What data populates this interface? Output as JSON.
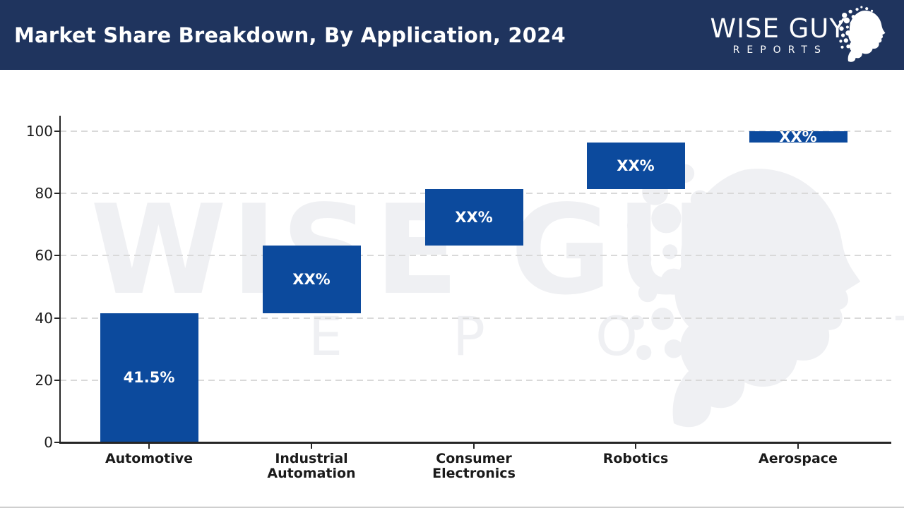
{
  "header": {
    "title": "Market Share Breakdown, By Application, 2024",
    "bg_color": "#1f345e",
    "logo": {
      "line1": "WISE GUY",
      "line2": "REPORTS",
      "icon": "wiseguy-head-icon"
    }
  },
  "watermark": {
    "line1": "WISE GUY",
    "line2": "R E P O R T S",
    "color": "#eff0f3"
  },
  "chart_data": {
    "type": "bar",
    "subtype": "waterfall-stacked-market-share",
    "title": "Market Share Breakdown, By Application, 2024",
    "categories": [
      "Automotive",
      "Industrial\nAutomation",
      "Consumer\nElectronics",
      "Robotics",
      "Aerospace"
    ],
    "segments": [
      {
        "category": "Automotive",
        "label": "41.5%",
        "start": 0,
        "end": 41.5
      },
      {
        "category": "Industrial Automation",
        "label": "XX%",
        "start": 41.5,
        "end": 63.2
      },
      {
        "category": "Consumer Electronics",
        "label": "XX%",
        "start": 63.2,
        "end": 81.4
      },
      {
        "category": "Robotics",
        "label": "XX%",
        "start": 81.4,
        "end": 96.4
      },
      {
        "category": "Aerospace",
        "label": "XX%",
        "start": 96.4,
        "end": 100
      }
    ],
    "yticks": [
      0,
      20,
      40,
      60,
      80,
      100
    ],
    "ylim": [
      0,
      105
    ],
    "grid": "horizontal-dashed",
    "legend": "none",
    "bar_color": "#0c4a9d",
    "axis_color": "#262626",
    "grid_color": "#d9d9d9"
  }
}
